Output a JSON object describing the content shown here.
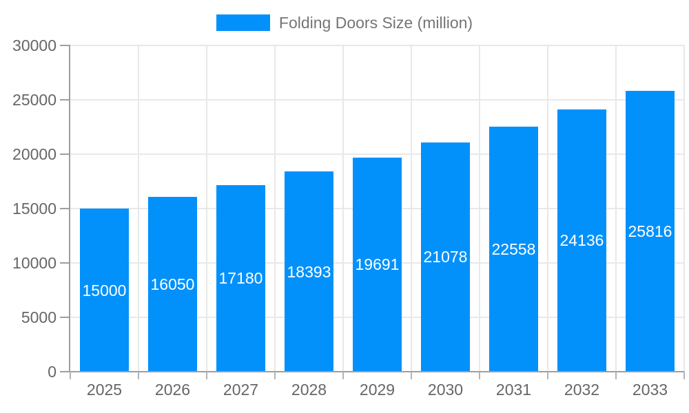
{
  "legend": {
    "label": "Folding Doors Size (million)"
  },
  "chart_data": {
    "type": "bar",
    "title": "",
    "xlabel": "",
    "ylabel": "",
    "categories": [
      "2025",
      "2026",
      "2027",
      "2028",
      "2029",
      "2030",
      "2031",
      "2032",
      "2033"
    ],
    "values": [
      15000,
      16050,
      17180,
      18393,
      19691,
      21078,
      22558,
      24136,
      25816
    ],
    "value_labels": [
      "15000",
      "16050",
      "17180",
      "18393",
      "19691",
      "21078",
      "22558",
      "24136",
      "25816"
    ],
    "series_name": "Folding Doors Size (million)",
    "ylim": [
      0,
      30000
    ],
    "ytick_step": 5000,
    "y_ticks": [
      "0",
      "5000",
      "10000",
      "15000",
      "20000",
      "25000",
      "30000"
    ],
    "grid": true,
    "legend_position": "top-center",
    "bar_color": "#0291fb",
    "value_label_color": "#ffffff"
  },
  "colors": {
    "bar": "#0291fb",
    "gridline": "#e8e8e8",
    "axis_line": "#9e9e9e",
    "tick_text": "#666666",
    "legend_text": "#757575",
    "background": "#ffffff"
  }
}
